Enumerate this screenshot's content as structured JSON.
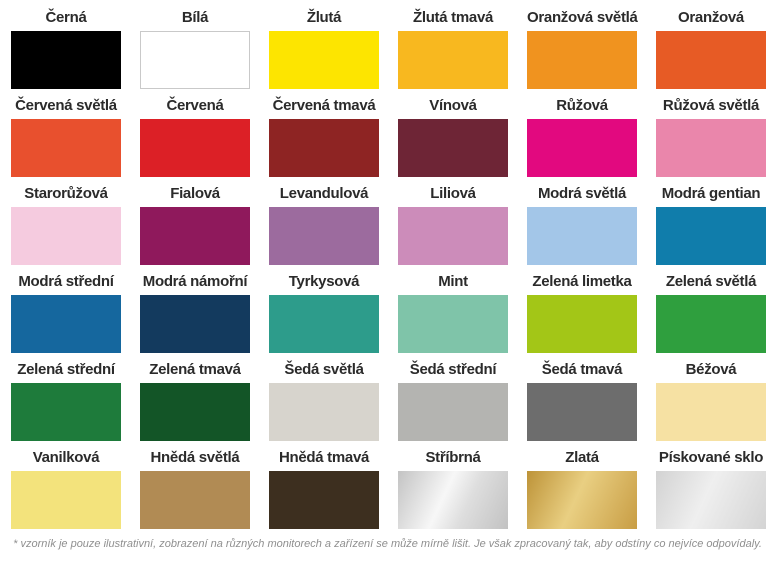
{
  "page": {
    "background": "#ffffff",
    "label_color": "#2b2b2b",
    "footnote_color": "#8f8f8f",
    "white_swatch_border": "#c9c9c9"
  },
  "footnote": {
    "text": "* vzorník je pouze ilustrativní, zobrazení na různých monitorech a zařízení se může mírně lišit. Je však zpracovaný tak, aby odstíny co nejvíce odpovídaly."
  },
  "swatches": [
    {
      "label": "Černá",
      "fill": "solid",
      "color": "#000000"
    },
    {
      "label": "Bílá",
      "fill": "solid",
      "color": "#ffffff",
      "border": "#c9c9c9"
    },
    {
      "label": "Žlutá",
      "fill": "solid",
      "color": "#fde500"
    },
    {
      "label": "Žlutá tmavá",
      "fill": "solid",
      "color": "#f8b81f"
    },
    {
      "label": "Oranžová světlá",
      "fill": "solid",
      "color": "#f0931f"
    },
    {
      "label": "Oranžová",
      "fill": "solid",
      "color": "#e75b25"
    },
    {
      "label": "Červená světlá",
      "fill": "solid",
      "color": "#e8502e"
    },
    {
      "label": "Červená",
      "fill": "solid",
      "color": "#dc2026"
    },
    {
      "label": "Červená tmavá",
      "fill": "solid",
      "color": "#8e2423"
    },
    {
      "label": "Vínová",
      "fill": "solid",
      "color": "#6e2536"
    },
    {
      "label": "Růžová",
      "fill": "solid",
      "color": "#e2097f"
    },
    {
      "label": "Růžová světlá",
      "fill": "solid",
      "color": "#ea86ab"
    },
    {
      "label": "Starorůžová",
      "fill": "solid",
      "color": "#f5cbdf"
    },
    {
      "label": "Fialová",
      "fill": "solid",
      "color": "#8f195c"
    },
    {
      "label": "Levandulová",
      "fill": "solid",
      "color": "#9c6b9e"
    },
    {
      "label": "Liliová",
      "fill": "solid",
      "color": "#cc8cba"
    },
    {
      "label": "Modrá světlá",
      "fill": "solid",
      "color": "#a3c6e8"
    },
    {
      "label": "Modrá gentian",
      "fill": "solid",
      "color": "#107dab"
    },
    {
      "label": "Modrá střední",
      "fill": "solid",
      "color": "#15679e"
    },
    {
      "label": "Modrá námořní",
      "fill": "solid",
      "color": "#133a5e"
    },
    {
      "label": "Tyrkysová",
      "fill": "solid",
      "color": "#2d9c8b"
    },
    {
      "label": "Mint",
      "fill": "solid",
      "color": "#7fc4a9"
    },
    {
      "label": "Zelená limetka",
      "fill": "solid",
      "color": "#a3c617"
    },
    {
      "label": "Zelená světlá",
      "fill": "solid",
      "color": "#2f9f3e"
    },
    {
      "label": "Zelená střední",
      "fill": "solid",
      "color": "#1e7b3b"
    },
    {
      "label": "Zelená tmavá",
      "fill": "solid",
      "color": "#135527"
    },
    {
      "label": "Šedá světlá",
      "fill": "solid",
      "color": "#d7d4cd"
    },
    {
      "label": "Šedá střední",
      "fill": "solid",
      "color": "#b4b4b1"
    },
    {
      "label": "Šedá tmavá",
      "fill": "solid",
      "color": "#6d6d6d"
    },
    {
      "label": "Béžová",
      "fill": "solid",
      "color": "#f6e1a3"
    },
    {
      "label": "Vanilková",
      "fill": "solid",
      "color": "#f3e37c"
    },
    {
      "label": "Hnědá světlá",
      "fill": "solid",
      "color": "#b18b54"
    },
    {
      "label": "Hnědá tmavá",
      "fill": "solid",
      "color": "#3d2f1f"
    },
    {
      "label": "Stříbrná",
      "fill": "gradient",
      "angle": 115,
      "stops": [
        "#c3c3c3 0%",
        "#f7f7f7 42%",
        "#dedede 62%",
        "#c2c2c2 100%"
      ]
    },
    {
      "label": "Zlatá",
      "fill": "gradient",
      "angle": 115,
      "stops": [
        "#bd9338 0%",
        "#e9cf82 45%",
        "#c89d44 100%"
      ]
    },
    {
      "label": "Pískované sklo",
      "fill": "gradient",
      "angle": 115,
      "stops": [
        "#d2d2d2 0%",
        "#efefef 45%",
        "#d4d4d4 100%"
      ]
    }
  ],
  "chart_data": {
    "type": "table",
    "title": "",
    "columns": [
      "name",
      "hex"
    ],
    "rows": [
      [
        "Černá",
        "#000000"
      ],
      [
        "Bílá",
        "#ffffff"
      ],
      [
        "Žlutá",
        "#fde500"
      ],
      [
        "Žlutá tmavá",
        "#f8b81f"
      ],
      [
        "Oranžová světlá",
        "#f0931f"
      ],
      [
        "Oranžová",
        "#e75b25"
      ],
      [
        "Červená světlá",
        "#e8502e"
      ],
      [
        "Červená",
        "#dc2026"
      ],
      [
        "Červená tmavá",
        "#8e2423"
      ],
      [
        "Vínová",
        "#6e2536"
      ],
      [
        "Růžová",
        "#e2097f"
      ],
      [
        "Růžová světlá",
        "#ea86ab"
      ],
      [
        "Starorůžová",
        "#f5cbdf"
      ],
      [
        "Fialová",
        "#8f195c"
      ],
      [
        "Levandulová",
        "#9c6b9e"
      ],
      [
        "Liliová",
        "#cc8cba"
      ],
      [
        "Modrá světlá",
        "#a3c6e8"
      ],
      [
        "Modrá gentian",
        "#107dab"
      ],
      [
        "Modrá střední",
        "#15679e"
      ],
      [
        "Modrá námořní",
        "#133a5e"
      ],
      [
        "Tyrkysová",
        "#2d9c8b"
      ],
      [
        "Mint",
        "#7fc4a9"
      ],
      [
        "Zelená limetka",
        "#a3c617"
      ],
      [
        "Zelená světlá",
        "#2f9f3e"
      ],
      [
        "Zelená střední",
        "#1e7b3b"
      ],
      [
        "Zelená tmavá",
        "#135527"
      ],
      [
        "Šedá světlá",
        "#d7d4cd"
      ],
      [
        "Šedá střední",
        "#b4b4b1"
      ],
      [
        "Šedá tmavá",
        "#6d6d6d"
      ],
      [
        "Béžová",
        "#f6e1a3"
      ],
      [
        "Vanilková",
        "#f3e37c"
      ],
      [
        "Hnědá světlá",
        "#b18b54"
      ],
      [
        "Hnědá tmavá",
        "#3d2f1f"
      ],
      [
        "Stříbrná",
        "#d9d9d9"
      ],
      [
        "Zlatá",
        "#d4af5e"
      ],
      [
        "Pískované sklo",
        "#e2e2e2"
      ]
    ],
    "layout": {
      "grid_columns": 6,
      "grid_rows": 6,
      "legend_position": "none",
      "axes": "none"
    }
  }
}
